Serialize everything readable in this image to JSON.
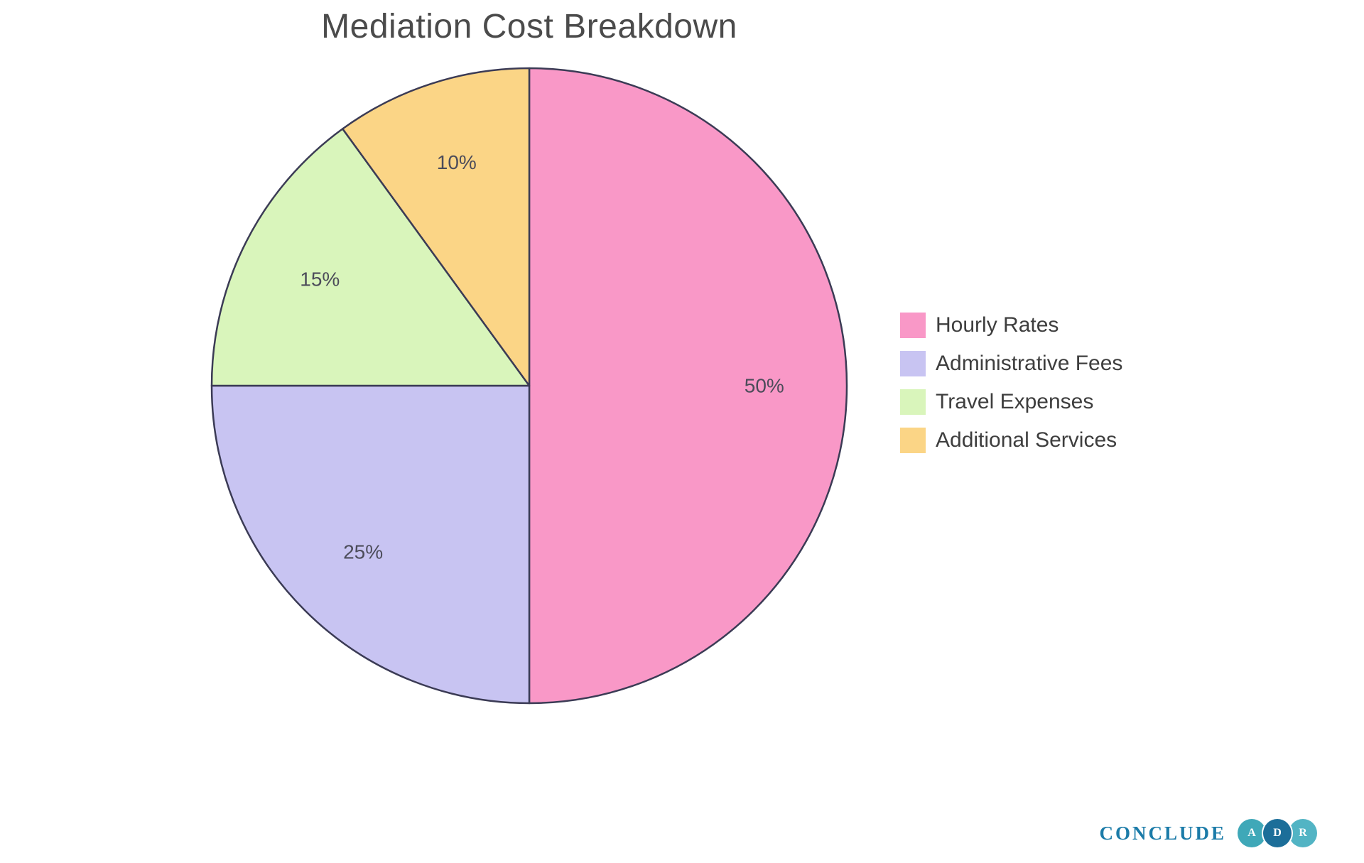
{
  "title": "Mediation Cost Breakdown",
  "chart_data": {
    "type": "pie",
    "title": "Mediation Cost Breakdown",
    "labels": [
      "Hourly Rates",
      "Administrative Fees",
      "Travel Expenses",
      "Additional Services"
    ],
    "values": [
      50,
      25,
      15,
      10
    ],
    "unit": "%",
    "slice_labels": [
      "50%",
      "25%",
      "15%",
      "10%"
    ],
    "colors": [
      "#F998C7",
      "#C8C4F2",
      "#D9F5BB",
      "#FBD586"
    ],
    "outline_color": "#3B3B55",
    "label_color": "#4C4C5A",
    "start_angle_deg": 0,
    "direction": "clockwise",
    "legend_position": "right",
    "background": "#FFFFFF"
  },
  "branding": {
    "name": "CONCLUDE",
    "color": "#1B7BA8",
    "badges": [
      {
        "letter": "A",
        "color": "#3FA8B8"
      },
      {
        "letter": "D",
        "color": "#1C6E99"
      },
      {
        "letter": "R",
        "color": "#52B4C4"
      }
    ]
  }
}
